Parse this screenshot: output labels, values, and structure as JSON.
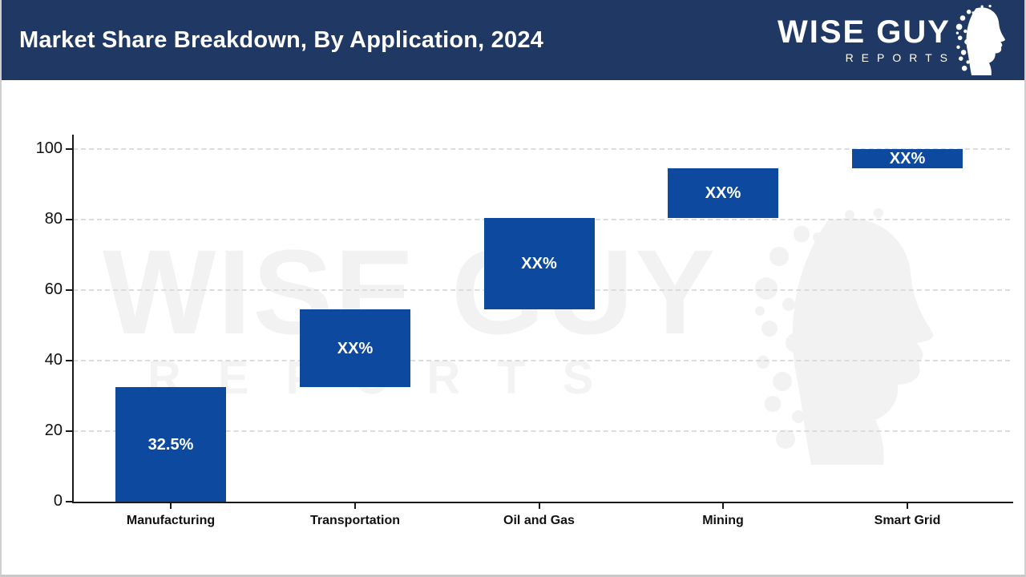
{
  "header": {
    "title": "Market Share Breakdown, By Application, 2024",
    "brand": {
      "line1": "WISE GUY",
      "line2": "REPORTS"
    },
    "bg_color": "#1f3864"
  },
  "watermark": {
    "line1": "WISE GUY",
    "line2": "REPORTS"
  },
  "chart_data": {
    "type": "bar",
    "subtype": "waterfall",
    "title": "Market Share Breakdown, By Application, 2024",
    "categories": [
      "Manufacturing",
      "Transportation",
      "Oil and Gas",
      "Mining",
      "Smart Grid"
    ],
    "segments": [
      {
        "category": "Manufacturing",
        "start": 0,
        "end": 32.5,
        "label": "32.5%"
      },
      {
        "category": "Transportation",
        "start": 32.5,
        "end": 54.5,
        "label": "XX%"
      },
      {
        "category": "Oil and Gas",
        "start": 54.5,
        "end": 80.5,
        "label": "XX%"
      },
      {
        "category": "Mining",
        "start": 80.5,
        "end": 94.5,
        "label": "XX%"
      },
      {
        "category": "Smart Grid",
        "start": 94.5,
        "end": 100,
        "label": "XX%"
      }
    ],
    "y_ticks": [
      0,
      20,
      40,
      60,
      80,
      100
    ],
    "ylim": [
      0,
      104
    ],
    "xlabel": "",
    "ylabel": "",
    "grid": true,
    "legend": false,
    "bar_color": "#0d4a9f",
    "value_label_color": "#ffffff",
    "grid_color": "#dcdcdc",
    "axis_color": "#1a1a1a"
  }
}
